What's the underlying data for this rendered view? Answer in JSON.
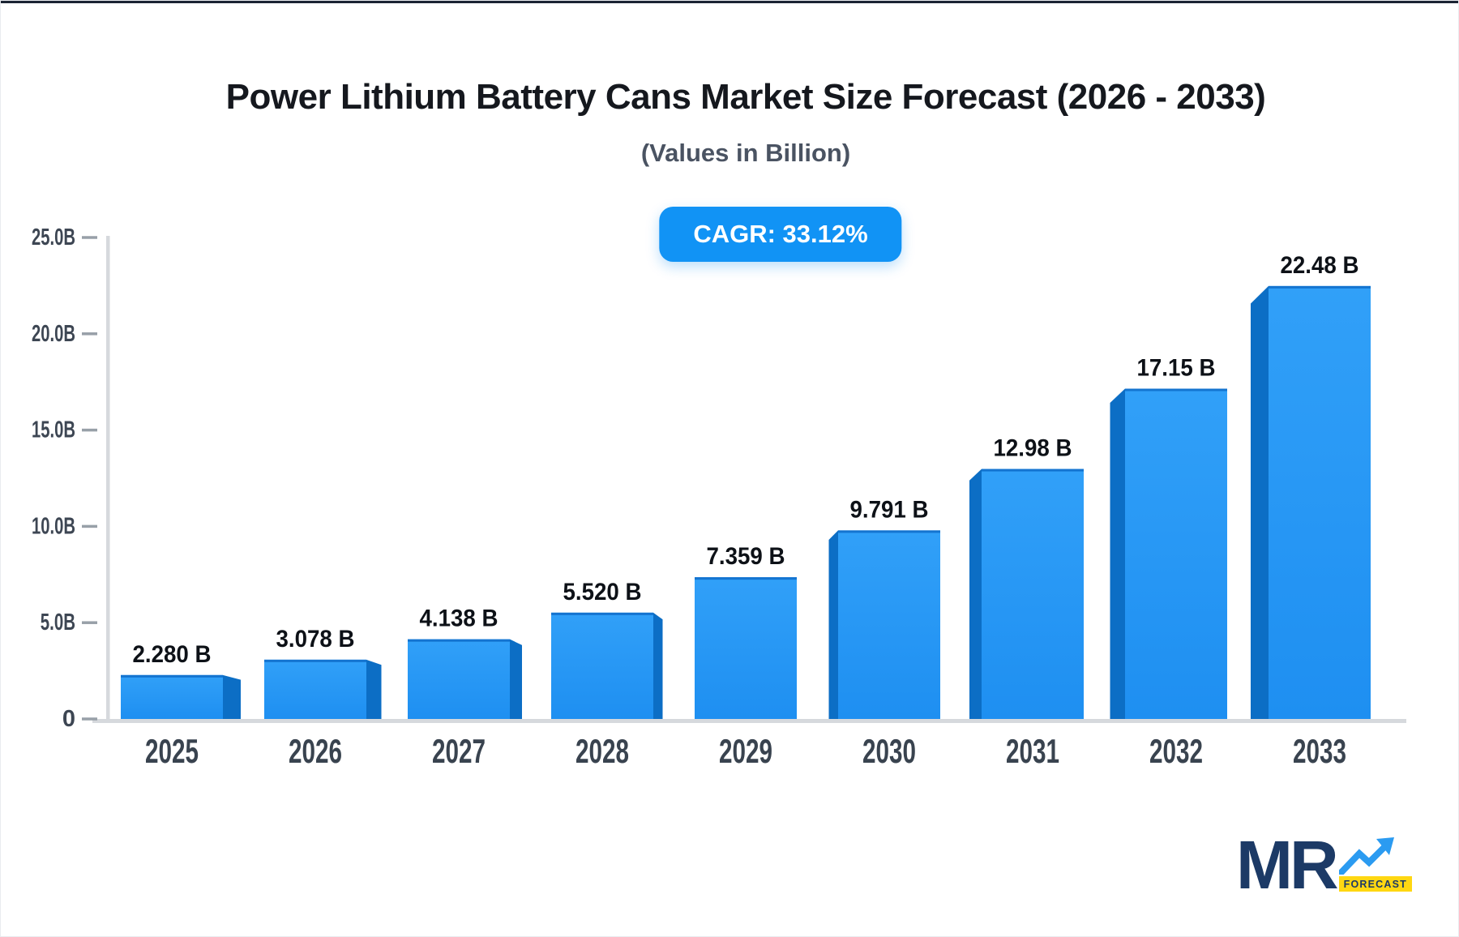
{
  "header": {
    "title": "Power Lithium Battery Cans Market Size Forecast (2026 - 2033)",
    "subtitle": "(Values in Billion)",
    "cagr_badge": "CAGR: 33.12%"
  },
  "chart_data": {
    "type": "bar",
    "title": "Power Lithium Battery Cans Market Size Forecast (2026 - 2033)",
    "subtitle": "(Values in Billion)",
    "cagr_percent": "33.12%",
    "categories": [
      "2025",
      "2026",
      "2027",
      "2028",
      "2029",
      "2030",
      "2031",
      "2032",
      "2033"
    ],
    "values": [
      2.28,
      3.078,
      4.138,
      5.52,
      7.359,
      9.791,
      12.98,
      17.15,
      22.48
    ],
    "value_labels": [
      "2.280 B",
      "3.078 B",
      "4.138 B",
      "5.520 B",
      "7.359 B",
      "9.791 B",
      "12.98 B",
      "17.15 B",
      "22.48 B"
    ],
    "xlabel": "",
    "ylabel": "",
    "ylim": [
      0,
      25
    ],
    "yticks": [
      {
        "v": 25,
        "label": "25.0B"
      },
      {
        "v": 20,
        "label": "20.0B"
      },
      {
        "v": 15,
        "label": "15.0B"
      },
      {
        "v": 10,
        "label": "10.0B"
      },
      {
        "v": 5,
        "label": "5.0B"
      },
      {
        "v": 0,
        "label": "0"
      }
    ],
    "grid": false,
    "legend": false
  },
  "colors": {
    "badge_bg": "#1193f5",
    "bar_face_top": "#31a0f8",
    "bar_face_bottom": "#1e8ff1",
    "bar_side": "#0c6ec5",
    "bar_top_line": "#1474d0",
    "axis_line": "#d6d9dd",
    "tick_mark": "#98a0a8",
    "y_label": "#3d4653",
    "x_label": "#39434f",
    "value_label": "#0d1117",
    "logo_navy": "#1c3a66",
    "logo_arrow": "#2b9bf1",
    "logo_yellow": "#ffd712"
  },
  "logo": {
    "text": "MR",
    "sub": "FORECAST"
  }
}
